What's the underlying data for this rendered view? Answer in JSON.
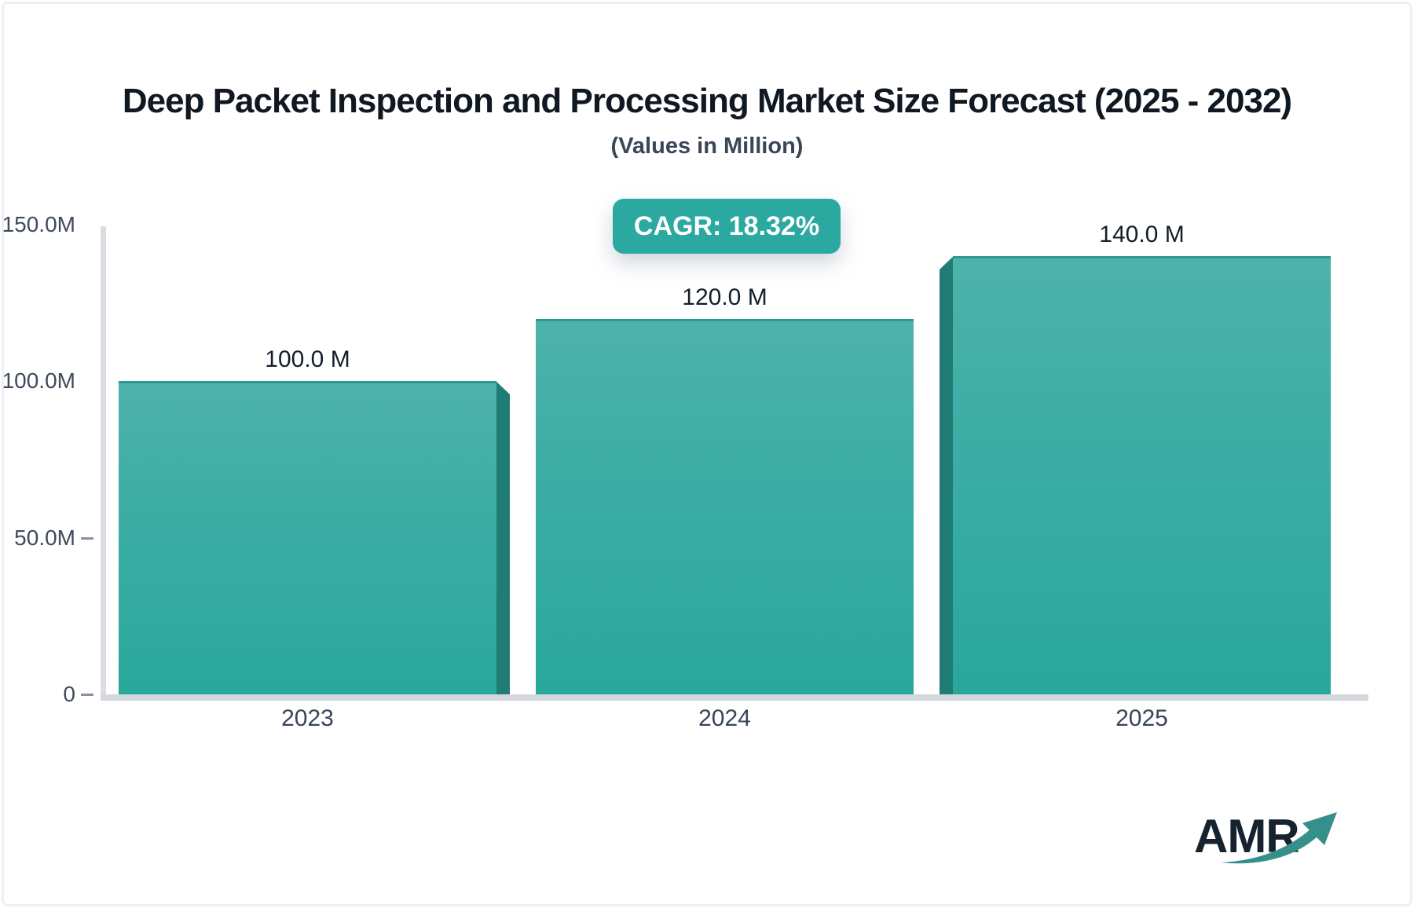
{
  "page": {
    "title": "Deep Packet Inspection and Processing Market Size Forecast (2025 - 2032)",
    "subtitle": "(Values in Million)",
    "cagr_label": "CAGR: 18.32%",
    "logo_text": "AMR"
  },
  "colors": {
    "accent_teal": "#2BA9A0",
    "bar_gradient_top": "#4DB2AA",
    "bar_gradient_bottom": "#29A79B",
    "bar_side_3d": "#1F7D75",
    "axis_line": "#D7DADE",
    "title_text": "#101822",
    "label_text": "#3A4658",
    "logo_navy": "#16222E",
    "logo_arrow_teal": "#35908C"
  },
  "chart_data": {
    "type": "bar",
    "title": "Deep Packet Inspection and Processing Market Size Forecast (2025 - 2032)",
    "subtitle": "(Values in Million)",
    "categories": [
      "2023",
      "2024",
      "2025"
    ],
    "values": [
      100,
      120,
      140
    ],
    "data_labels": [
      "100.0 M",
      "120.0 M",
      "140.0 M"
    ],
    "cagr_percent": 18.32,
    "xlabel": "",
    "ylabel": "",
    "ylim": [
      0,
      150
    ],
    "y_tick_labels": [
      "150.0M",
      "100.0M",
      "50.0M",
      "0"
    ],
    "y_tick_values": [
      150,
      100,
      50,
      0
    ],
    "y_ticks_with_dash": [
      50,
      0
    ],
    "grid": false,
    "legend": false
  }
}
